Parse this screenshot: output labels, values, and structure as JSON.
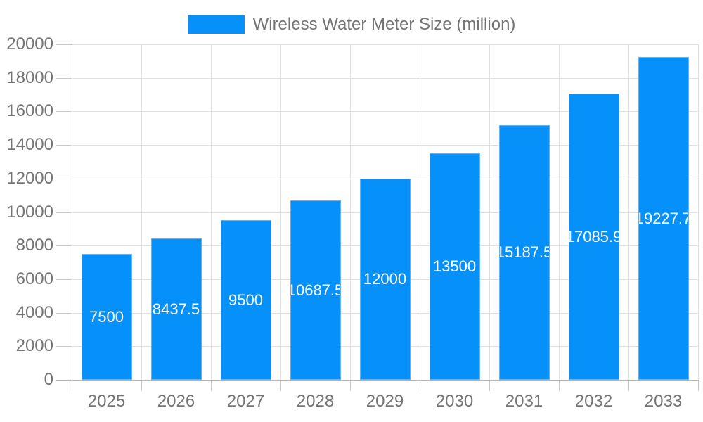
{
  "legend": {
    "label": "Wireless Water Meter Size (million)"
  },
  "chart_data": {
    "type": "bar",
    "title": "Wireless Water Meter Size (million)",
    "categories": [
      "2025",
      "2026",
      "2027",
      "2028",
      "2029",
      "2030",
      "2031",
      "2032",
      "2033"
    ],
    "series": [
      {
        "name": "Wireless Water Meter Size (million)",
        "values": [
          7500,
          8437.5,
          9500,
          10687.5,
          12000,
          13500,
          15187.5,
          17085.9,
          19227.7
        ]
      }
    ],
    "value_labels": [
      "7500",
      "8437.5",
      "9500",
      "10687.5",
      "12000",
      "13500",
      "15187.5",
      "17085.9",
      "19227.7"
    ],
    "xlabel": "",
    "ylabel": "",
    "ylim": [
      0,
      20000
    ],
    "ytick_step": 2000,
    "yticks": [
      0,
      2000,
      4000,
      6000,
      8000,
      10000,
      12000,
      14000,
      16000,
      18000,
      20000
    ],
    "grid": true,
    "legend_position": "top-center"
  },
  "colors": {
    "bar": "#0590FA",
    "bar_border": "#66B2F0",
    "grid_line": "#E0E0E0",
    "axis_line": "#B3B3B3",
    "tick_mark": "#C9C9C9",
    "axis_text": "#757575",
    "value_label": "#FFFFFF",
    "background": "#FFFFFF"
  }
}
